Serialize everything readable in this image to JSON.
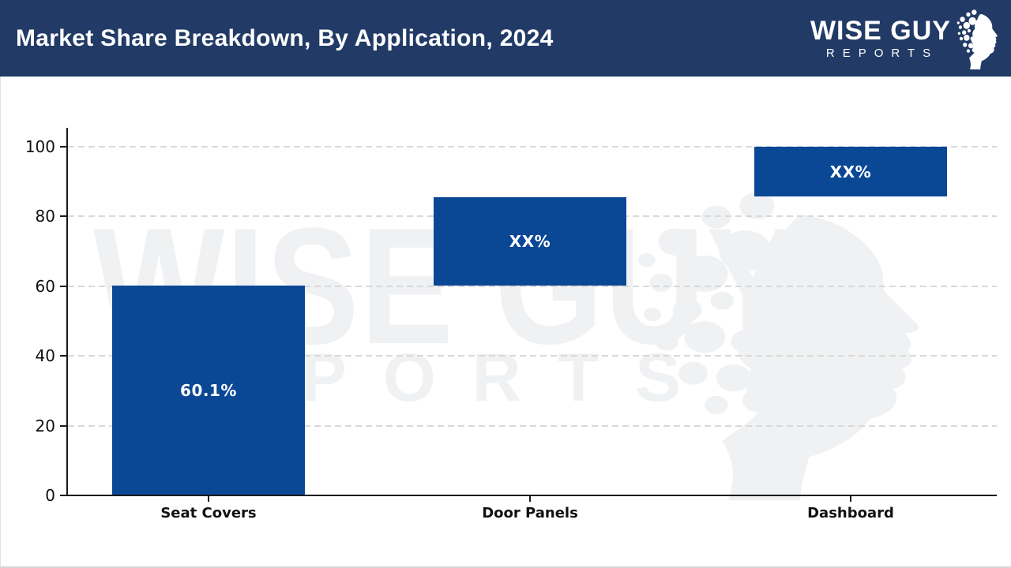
{
  "header": {
    "title": "Market Share Breakdown, By Application, 2024",
    "logo": {
      "wordmark": "WISE GUY",
      "subtitle": "REPORTS"
    }
  },
  "watermark": {
    "line1": "WISE GUY",
    "line2": "REPORTS"
  },
  "chart_data": {
    "type": "bar",
    "variant": "stacked-waterfall-segments",
    "title": "Market Share Breakdown, By Application, 2024",
    "categories": [
      "Seat Covers",
      "Door Panels",
      "Dashboard"
    ],
    "bars": [
      {
        "category": "Seat Covers",
        "label": "60.1%",
        "start": 0,
        "end": 60.1
      },
      {
        "category": "Door Panels",
        "label": "XX%",
        "start": 60.1,
        "end": 85.6
      },
      {
        "category": "Dashboard",
        "label": "XX%",
        "start": 85.7,
        "end": 100
      }
    ],
    "xlabel": "",
    "ylabel": "",
    "ylim": [
      0,
      100
    ],
    "yticks": [
      "0",
      "20",
      "40",
      "60",
      "80",
      "100"
    ],
    "grid": "horizontal-dashed",
    "legend": "none",
    "colors": {
      "bar": "#0A4795",
      "bar_label": "#FFFFFF",
      "axis": "#1A1A1A",
      "gridline": "#D9D9D9",
      "header_bg": "#213A66",
      "watermark": "#F0F1F3"
    }
  }
}
